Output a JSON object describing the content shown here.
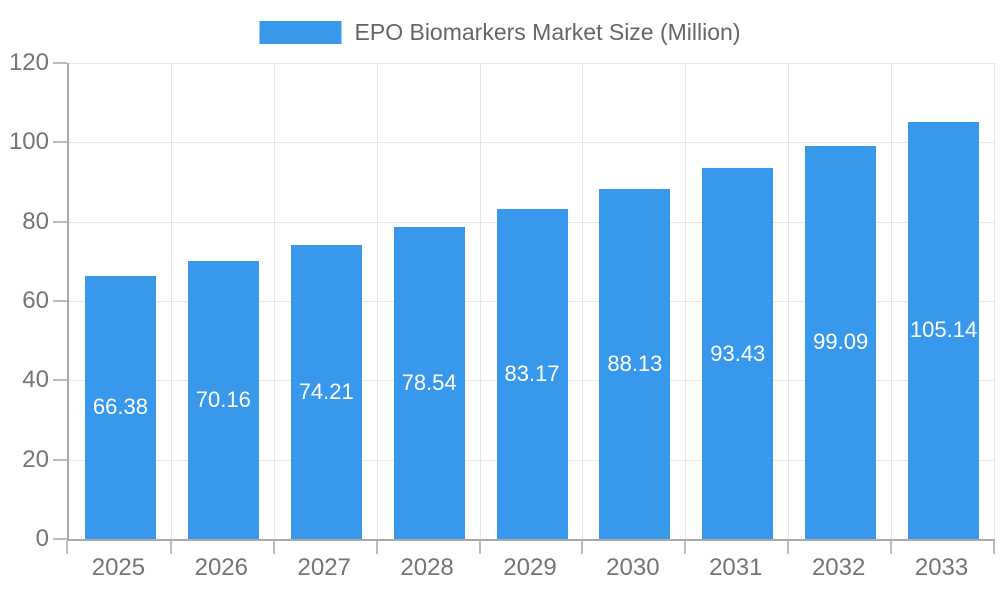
{
  "legend": {
    "label": "EPO Biomarkers Market Size (Million)"
  },
  "colors": {
    "bar": "#3898EC",
    "grid": "#e6e6e6",
    "axis": "#a9a9a9",
    "tickmark": "#bdbdbd",
    "tick_text": "#757575",
    "legend_text": "#666666",
    "value_text": "#ffffff",
    "background": "#ffffff"
  },
  "chart_data": {
    "type": "bar",
    "title": "EPO Biomarkers Market Size (Million)",
    "categories": [
      "2025",
      "2026",
      "2027",
      "2028",
      "2029",
      "2030",
      "2031",
      "2032",
      "2033"
    ],
    "values": [
      66.38,
      70.16,
      74.21,
      78.54,
      83.17,
      88.13,
      93.43,
      99.09,
      105.14
    ],
    "value_labels": [
      "66.38",
      "70.16",
      "74.21",
      "78.54",
      "83.17",
      "88.13",
      "93.43",
      "99.09",
      "105.14"
    ],
    "series": [
      {
        "name": "EPO Biomarkers Market Size (Million)",
        "values": [
          66.38,
          70.16,
          74.21,
          78.54,
          83.17,
          88.13,
          93.43,
          99.09,
          105.14
        ]
      }
    ],
    "xlabel": "",
    "ylabel": "",
    "ylim": [
      0,
      120
    ],
    "yticks": [
      0,
      20,
      40,
      60,
      80,
      100,
      120
    ],
    "grid": true,
    "legend_position": "top",
    "value_label_style": "centered-white-inside-bar"
  }
}
